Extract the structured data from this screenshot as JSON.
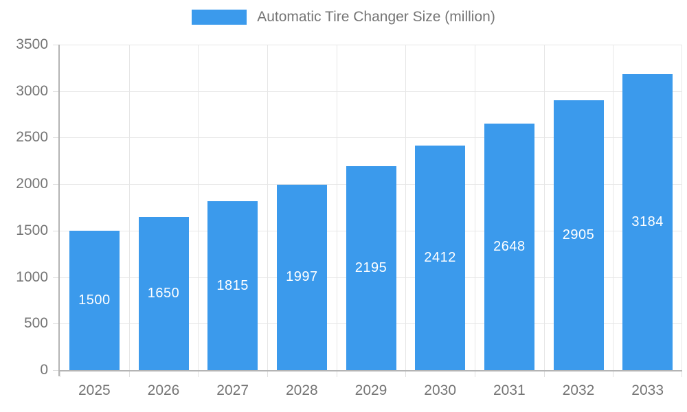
{
  "legend": {
    "label": "Automatic Tire Changer Size (million)",
    "swatch_color": "#3b9aec"
  },
  "chart_data": {
    "type": "bar",
    "title": "Automatic Tire Changer Size (million)",
    "categories": [
      "2025",
      "2026",
      "2027",
      "2028",
      "2029",
      "2030",
      "2031",
      "2032",
      "2033"
    ],
    "values": [
      1500,
      1650,
      1815,
      1997,
      2195,
      2412,
      2648,
      2905,
      3184
    ],
    "bar_labels": [
      "1500",
      "1650",
      "1815",
      "1997",
      "2195",
      "2412",
      "2648",
      "2905",
      "3184"
    ],
    "xlabel": "",
    "ylabel": "",
    "ylim": [
      0,
      3500
    ],
    "ytick_step": 500,
    "ytick_labels": [
      "0",
      "500",
      "1000",
      "1500",
      "2000",
      "2500",
      "3000",
      "3500"
    ],
    "grid": true,
    "legend_position": "top-center",
    "colors": {
      "bar": "#3b9aec",
      "bar_label": "#ffffff",
      "axis_text": "#757575",
      "gridline": "#e6e6e6",
      "axis_line": "#b4b4b4",
      "tick": "#dcdcdc"
    }
  }
}
